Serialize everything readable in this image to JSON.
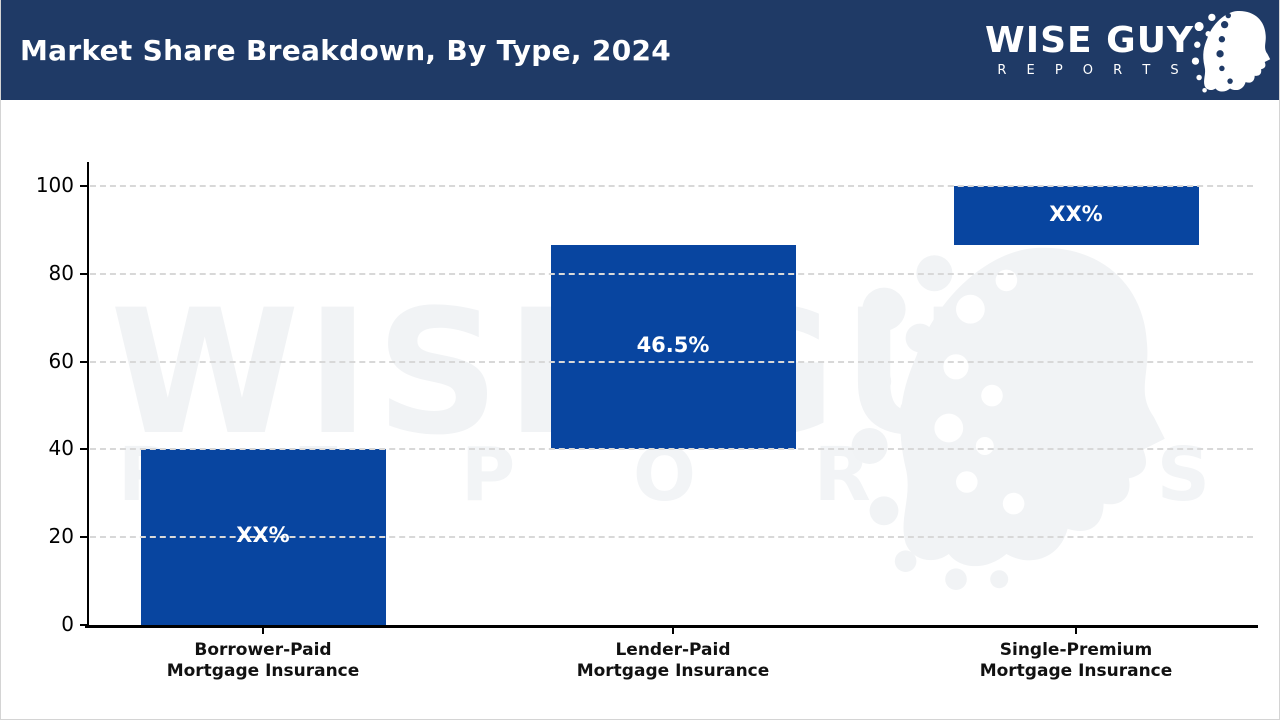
{
  "header": {
    "title": "Market Share Breakdown, By Type, 2024",
    "logo": {
      "line1": "WISE GUY",
      "line2": "R E P O R T S"
    }
  },
  "watermark": {
    "line1": "WISE GUY",
    "line2": "REPORTS"
  },
  "colors": {
    "header_bg": "#1f3a66",
    "bar": "#0845a0",
    "grid": "#d8d8d8",
    "axis": "#000000",
    "bar_label": "#ffffff",
    "watermark": "#f1f3f5"
  },
  "chart_data": {
    "type": "bar",
    "subtype": "waterfall-stacked-percent",
    "title": "Market Share Breakdown, By Type, 2024",
    "categories": [
      [
        "Borrower-Paid",
        "Mortgage Insurance"
      ],
      [
        "Lender-Paid",
        "Mortgage Insurance"
      ],
      [
        "Single-Premium",
        "Mortgage Insurance"
      ]
    ],
    "series": [
      {
        "name": "Market Share",
        "segments": [
          {
            "from": 0,
            "to": 40,
            "label": "XX%"
          },
          {
            "from": 40,
            "to": 86.5,
            "label": "46.5%"
          },
          {
            "from": 86.5,
            "to": 100,
            "label": "XX%"
          }
        ]
      }
    ],
    "yticks": [
      0,
      20,
      40,
      60,
      80,
      100
    ],
    "ylim": [
      0,
      105
    ],
    "xlabel": "",
    "ylabel": "",
    "grid": "horizontal-dashed-over-bars",
    "legend": "none"
  }
}
